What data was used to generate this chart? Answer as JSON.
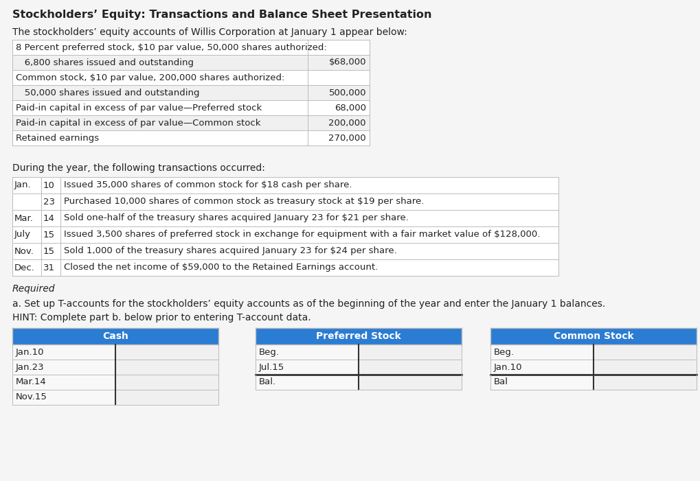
{
  "title": "Stockholders’ Equity: Transactions and Balance Sheet Presentation",
  "subtitle": "The stockholders’ equity accounts of Willis Corporation at January 1 appear below:",
  "bg_color": "#f5f5f5",
  "table1": {
    "rows": [
      [
        "8 Percent preferred stock, $10 par value, 50,000 shares authorized:",
        ""
      ],
      [
        "   6,800 shares issued and outstanding",
        "$68,000"
      ],
      [
        "Common stock, $10 par value, 200,000 shares authorized:",
        ""
      ],
      [
        "   50,000 shares issued and outstanding",
        "500,000"
      ],
      [
        "Paid-in capital in excess of par value—Preferred stock",
        "68,000"
      ],
      [
        "Paid-in capital in excess of par value—Common stock",
        "200,000"
      ],
      [
        "Retained earnings",
        "270,000"
      ]
    ]
  },
  "transactions_label": "During the year, the following transactions occurred:",
  "transactions": [
    [
      "Jan.",
      "10",
      "Issued 35,000 shares of common stock for $18 cash per share."
    ],
    [
      "",
      "23",
      "Purchased 10,000 shares of common stock as treasury stock at $19 per share."
    ],
    [
      "Mar.",
      "14",
      "Sold one-half of the treasury shares acquired January 23 for $21 per share."
    ],
    [
      "July",
      "15",
      "Issued 3,500 shares of preferred stock in exchange for equipment with a fair market value of $128,000."
    ],
    [
      "Nov.",
      "15",
      "Sold 1,000 of the treasury shares acquired January 23 for $24 per share."
    ],
    [
      "Dec.",
      "31",
      "Closed the net income of $59,000 to the Retained Earnings account."
    ]
  ],
  "required_label": "Required",
  "instruction_a": "a. Set up T-accounts for the stockholders’ equity accounts as of the beginning of the year and enter the January 1 balances.",
  "hint": "HINT: Complete part b. below prior to entering T-account data.",
  "ta_cash_labels": [
    "Jan.10",
    "Jan.23",
    "Mar.14",
    "Nov.15"
  ],
  "ta_pref_labels": [
    "Beg.",
    "Jul.15",
    "Bal."
  ],
  "ta_common_labels": [
    "Beg.",
    "Jan.10",
    "Bal"
  ],
  "header_color": "#2b7cd3",
  "header_text_color": "#ffffff",
  "table_border_color": "#bbbbbb",
  "table_bg_even": "#f0f0f0",
  "table_bg_odd": "#ffffff",
  "text_color": "#222222",
  "ta_row_bg1": "#f5f5f5",
  "ta_row_bg2": "#e8e8e8"
}
